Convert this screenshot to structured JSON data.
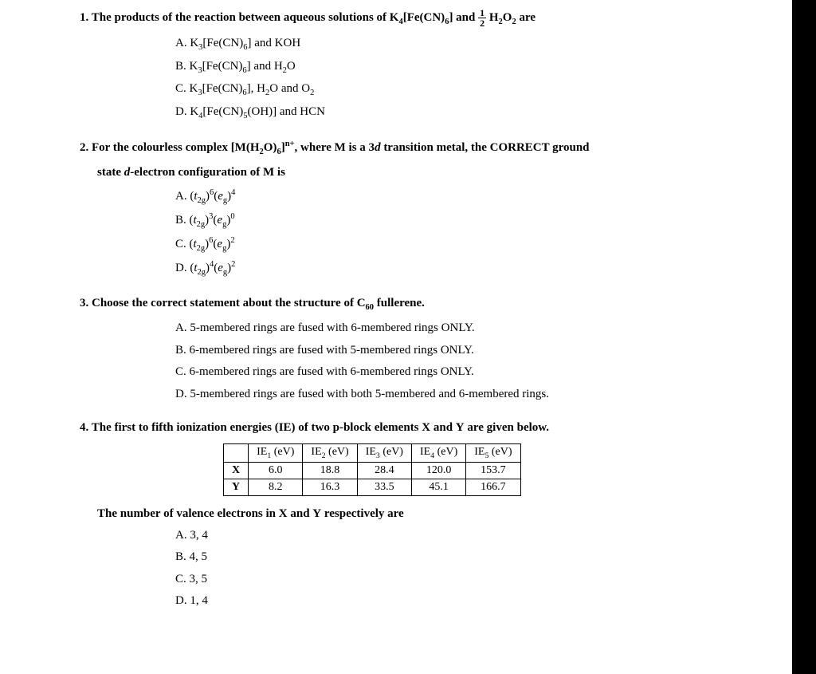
{
  "questions": [
    {
      "num": "1.",
      "stem": "The products of the reaction between aqueous solutions of K<sub>4</sub>[Fe(CN)<sub>6</sub>] and <span class='frac'><span class='top'>1</span><span class='bot'>2</span></span> H<sub>2</sub>O<sub>2</sub> are",
      "options": [
        "A. K<sub>3</sub>[Fe(CN)<sub>6</sub>] and KOH",
        "B. K<sub>3</sub>[Fe(CN)<sub>6</sub>] and H<sub>2</sub>O",
        "C. K<sub>3</sub>[Fe(CN)<sub>6</sub>], H<sub>2</sub>O and O<sub>2</sub>",
        "D. K<sub>4</sub>[Fe(CN)<sub>5</sub>(OH)] and HCN"
      ]
    },
    {
      "num": "2.",
      "stem": "For the colourless complex [M(H<sub>2</sub>O)<sub>6</sub>]<sup>n+</sup>, where M is a 3<i>d</i> transition metal, the CORRECT ground",
      "stem2": "state <i>d</i>-electron configuration of M is",
      "options": [
        "A. (<i>t</i><sub>2g</sub>)<sup>6</sup>(<i>e</i><sub>g</sub>)<sup>4</sup>",
        "B. (<i>t</i><sub>2g</sub>)<sup>3</sup>(<i>e</i><sub>g</sub>)<sup>0</sup>",
        "C. (<i>t</i><sub>2g</sub>)<sup>6</sup>(<i>e</i><sub>g</sub>)<sup>2</sup>",
        "D. (<i>t</i><sub>2g</sub>)<sup>4</sup>(<i>e</i><sub>g</sub>)<sup>2</sup>"
      ]
    },
    {
      "num": "3.",
      "stem": "Choose the correct statement about the structure of C<sub>60</sub> fullerene.",
      "options": [
        "A. 5-membered rings are fused with 6-membered rings ONLY.",
        "B. 6-membered rings are fused with 5-membered rings ONLY.",
        "C. 6-membered rings are fused with 6-membered rings ONLY.",
        "D. 5-membered rings are fused with both 5-membered and 6-membered rings."
      ]
    },
    {
      "num": "4.",
      "stem": "The first to fifth ionization energies (IE) of two p-block elements <b>X</b> and <b>Y</b> are given below.",
      "table": {
        "headers": [
          "",
          "IE<sub>1</sub> (eV)",
          "IE<sub>2</sub> (eV)",
          "IE<sub>3</sub> (eV)",
          "IE<sub>4</sub> (eV)",
          "IE<sub>5</sub> (eV)"
        ],
        "rows": [
          [
            "X",
            "6.0",
            "18.8",
            "28.4",
            "120.0",
            "153.7"
          ],
          [
            "Y",
            "8.2",
            "16.3",
            "33.5",
            "45.1",
            "166.7"
          ]
        ]
      },
      "after": "The number of valence electrons in <b>X</b> and <b>Y</b> respectively are",
      "options": [
        "A. 3, 4",
        "B. 4, 5",
        "C. 3, 5",
        "D. 1, 4"
      ]
    }
  ]
}
